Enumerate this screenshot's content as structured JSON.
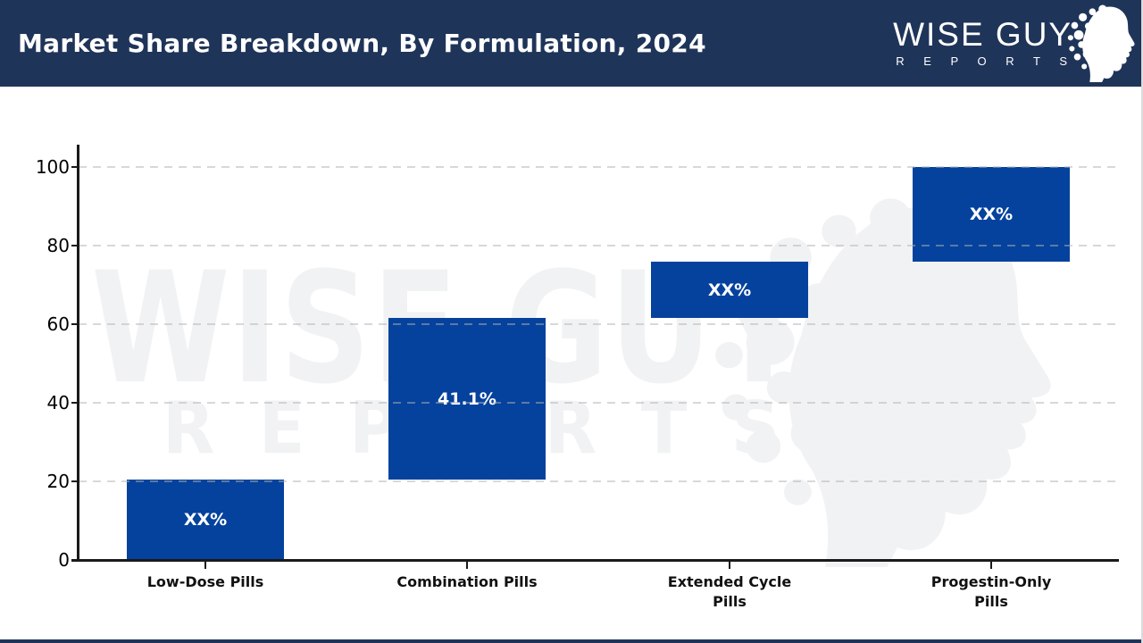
{
  "header": {
    "title": "Market Share Breakdown, By Formulation, 2024",
    "logo": {
      "line1": "WISE GUY",
      "line2": "R E P O R T S"
    }
  },
  "watermark": {
    "line1": "WISE GUY",
    "line2": "R E P O R T S"
  },
  "colors": {
    "header_bg": "#1f3459",
    "bar": "#05429d",
    "grid": "#dcdcdc",
    "axis": "#1a1a1a",
    "watermark": "#f1f2f4",
    "title_text": "#ffffff",
    "bar_label_text": "#ffffff"
  },
  "chart_data": {
    "type": "bar",
    "subtype": "waterfall",
    "title": "Market Share Breakdown, By Formulation, 2024",
    "categories": [
      "Low-Dose Pills",
      "Combination Pills",
      "Extended Cycle Pills",
      "Progestin-Only Pills"
    ],
    "category_lines": [
      [
        "Low-Dose Pills"
      ],
      [
        "Combination Pills"
      ],
      [
        "Extended Cycle",
        "Pills"
      ],
      [
        "Progestin-Only",
        "Pills"
      ]
    ],
    "segments": [
      {
        "label": "XX%",
        "start": 0,
        "end": 20.4
      },
      {
        "label": "41.1%",
        "start": 20.4,
        "end": 61.5
      },
      {
        "label": "XX%",
        "start": 61.5,
        "end": 75.9
      },
      {
        "label": "XX%",
        "start": 75.9,
        "end": 100
      }
    ],
    "segment_sizes_estimated": [
      20.4,
      41.1,
      14.4,
      24.1
    ],
    "yticks": [
      0,
      20,
      40,
      60,
      80,
      100
    ],
    "ylim": [
      0,
      105
    ],
    "xlabel": "",
    "ylabel": "",
    "grid": "horizontal-dashed",
    "legend": "none"
  }
}
